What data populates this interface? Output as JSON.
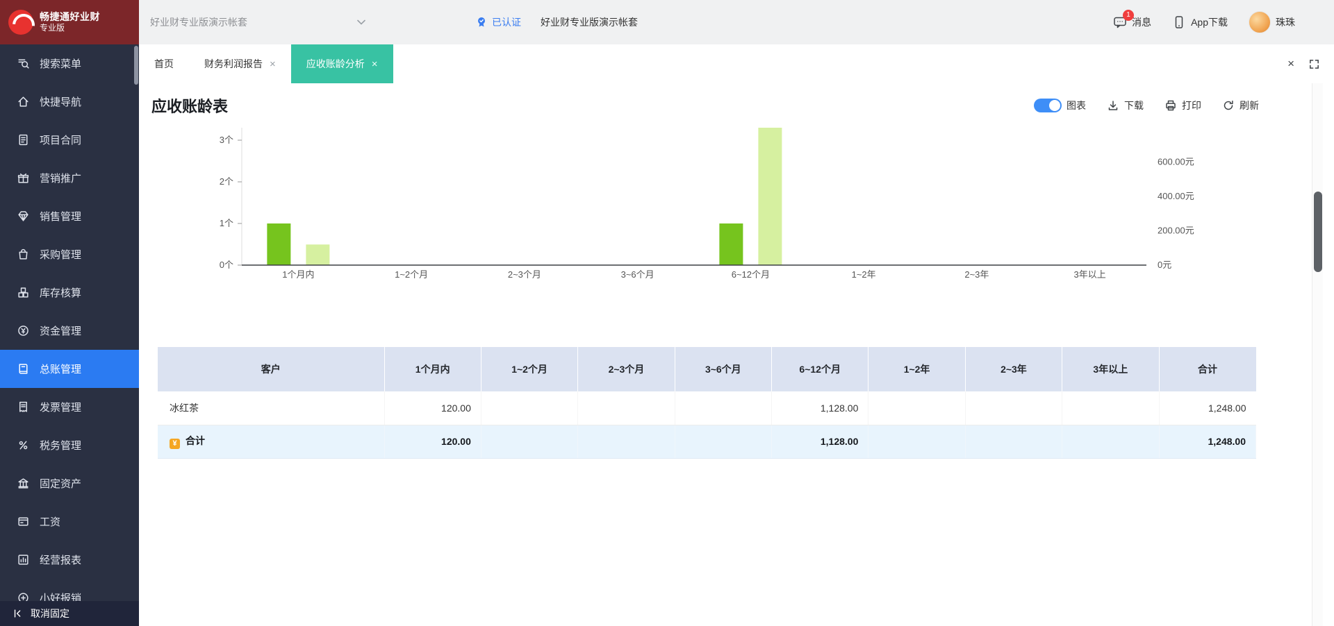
{
  "topbar": {
    "account_dropdown": "好业财专业版演示帐套",
    "dropdown_icon": "chevron-down-icon",
    "verified_badge": "已认证",
    "verified_icon": "medal-icon",
    "account_name": "好业财专业版演示帐套",
    "messages_label": "消息",
    "messages_badge": "1",
    "messages_icon": "chat-bubble-icon",
    "app_download_label": "App下载",
    "app_download_icon": "phone-icon",
    "user_name": "珠珠",
    "user_avatar": "avatar"
  },
  "sidebar": {
    "logo_title": "畅捷通好业财",
    "logo_subtitle": "专业版",
    "logo_icon": "chanjet-logo-icon",
    "unpin_label": "取消固定",
    "unpin_icon": "collapse-pin-icon",
    "items": [
      {
        "label": "搜索菜单",
        "icon": "search-icon",
        "active": false
      },
      {
        "label": "快捷导航",
        "icon": "home-icon",
        "active": false
      },
      {
        "label": "项目合同",
        "icon": "contract-icon",
        "active": false
      },
      {
        "label": "营销推广",
        "icon": "gift-icon",
        "active": false
      },
      {
        "label": "销售管理",
        "icon": "gem-icon",
        "active": false
      },
      {
        "label": "采购管理",
        "icon": "shopping-bag-icon",
        "active": false
      },
      {
        "label": "库存核算",
        "icon": "boxes-icon",
        "active": false
      },
      {
        "label": "资金管理",
        "icon": "coin-icon",
        "active": false
      },
      {
        "label": "总账管理",
        "icon": "ledger-book-icon",
        "active": true
      },
      {
        "label": "发票管理",
        "icon": "receipt-icon",
        "active": false
      },
      {
        "label": "税务管理",
        "icon": "percent-icon",
        "active": false
      },
      {
        "label": "固定资产",
        "icon": "bank-icon",
        "active": false
      },
      {
        "label": "工资",
        "icon": "id-card-icon",
        "active": false
      },
      {
        "label": "经营报表",
        "icon": "bar-chart-icon",
        "active": false
      },
      {
        "label": "小好报销",
        "icon": "circle-plus-icon",
        "active": false,
        "partially_visible": true
      }
    ]
  },
  "tabs": [
    {
      "label": "首页",
      "closable": false,
      "active": false
    },
    {
      "label": "财务利润报告",
      "closable": true,
      "active": false
    },
    {
      "label": "应收账龄分析",
      "closable": true,
      "active": true
    }
  ],
  "page": {
    "title": "应收账龄表",
    "toolbar": {
      "chart_toggle_label": "图表",
      "chart_toggle_on": true,
      "download_label": "下载",
      "print_label": "打印",
      "refresh_label": "刷新"
    }
  },
  "chart_data": {
    "type": "bar",
    "title": "应收账龄表",
    "categories": [
      "1个月内",
      "1~2个月",
      "2~3个月",
      "3~6个月",
      "6~12个月",
      "1~2年",
      "2~3年",
      "3年以上"
    ],
    "series": [
      {
        "id": "count",
        "axis": "left",
        "color": "#76c41e",
        "values": [
          1,
          0,
          0,
          0,
          1,
          0,
          0,
          0
        ]
      },
      {
        "id": "amount",
        "axis": "right",
        "color": "#d6f0a0",
        "values": [
          120,
          0,
          0,
          0,
          1128,
          0,
          0,
          0
        ]
      }
    ],
    "left_axis_ticks": [
      "0个",
      "1个",
      "2个",
      "3个"
    ],
    "left_axis_step": 1,
    "right_axis_ticks": [
      "0元",
      "200.00元",
      "400.00元",
      "600.00元"
    ],
    "right_axis_step": 200,
    "grid": false,
    "legend": "none",
    "note": "top of chart clipped by scroll; amount bar at 6~12个月 exceeds visible axis"
  },
  "table": {
    "columns": [
      "客户",
      "1个月内",
      "1~2个月",
      "2~3个月",
      "3~6个月",
      "6~12个月",
      "1~2年",
      "2~3年",
      "3年以上",
      "合计"
    ],
    "rows": [
      {
        "customer": "冰红茶",
        "values": [
          "120.00",
          "",
          "",
          "",
          "1,128.00",
          "",
          "",
          "",
          "1,248.00"
        ]
      }
    ],
    "total_row": {
      "label": "合计",
      "icon": "gold-yen-icon",
      "values": [
        "120.00",
        "",
        "",
        "",
        "1,128.00",
        "",
        "",
        "",
        "1,248.00"
      ]
    }
  },
  "colors": {
    "sidebar_bg": "#2a3042",
    "sidebar_active": "#2b7bf2",
    "logo_bg": "#7c2629",
    "active_tab": "#38c2a3",
    "toggle_on": "#3e8ef7",
    "bar_count": "#76c41e",
    "bar_amount": "#d6f0a0",
    "table_header_bg": "#dbe2f1",
    "total_row_bg": "#e8f4fd",
    "badge_red": "#f03e3e"
  }
}
